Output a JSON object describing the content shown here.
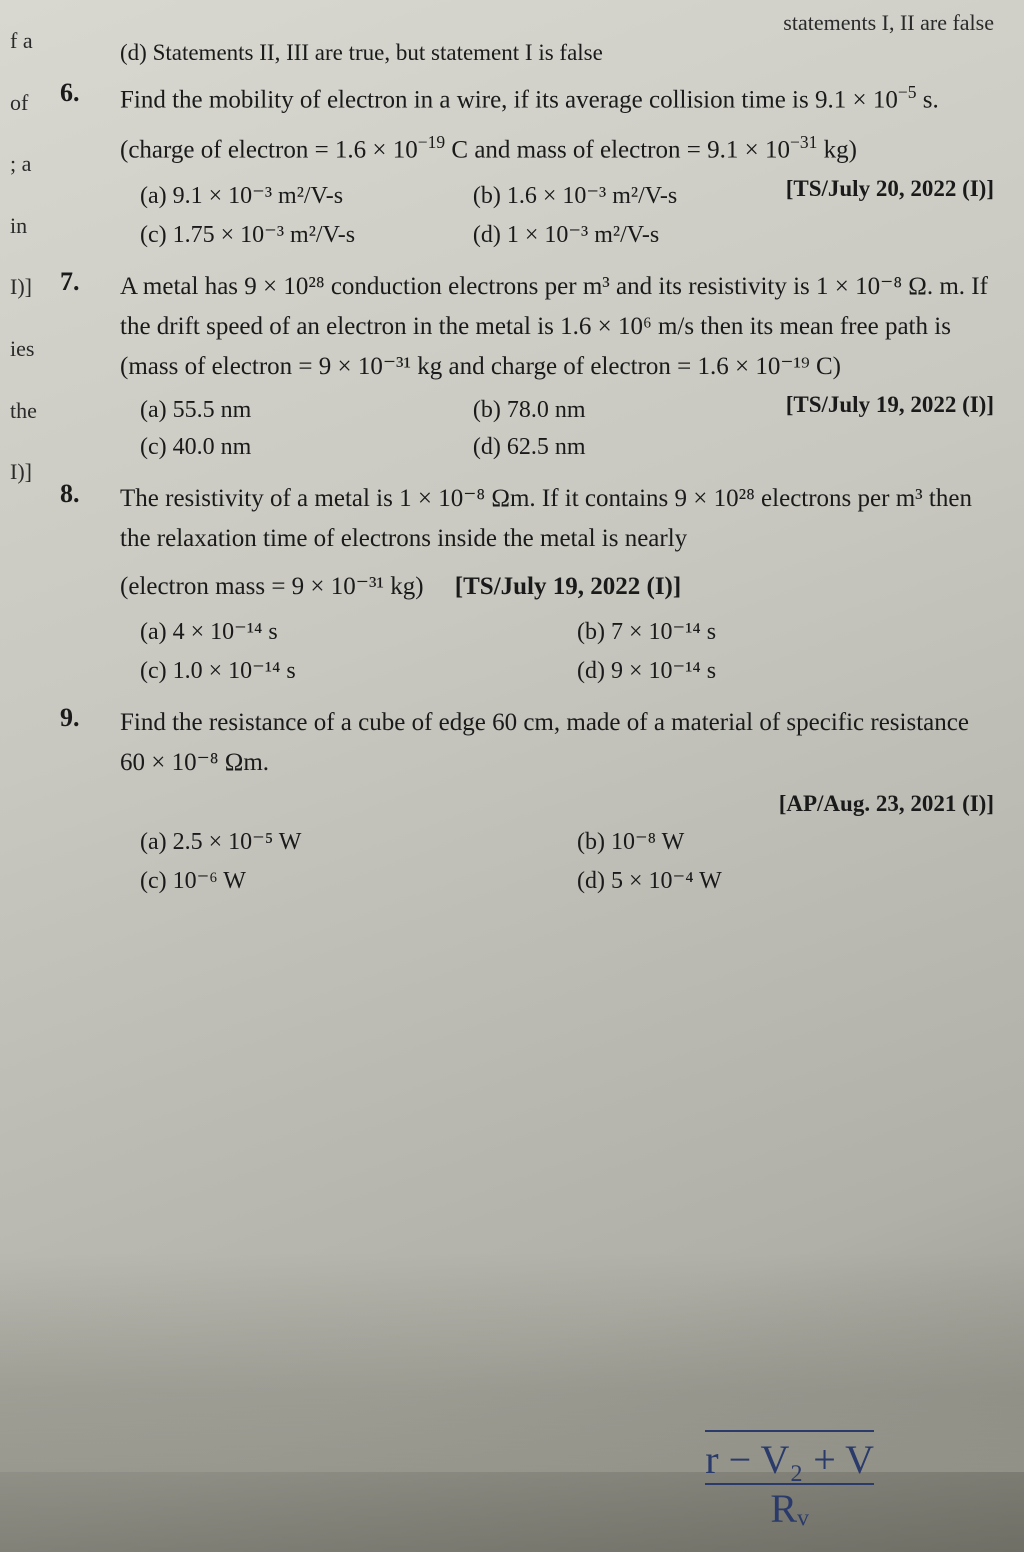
{
  "leftMargin": {
    "lines": [
      "f a",
      "of",
      "; a",
      "in",
      "I)]",
      "",
      "ies",
      "the",
      "",
      "I)]"
    ]
  },
  "topFragment": "statements I, II are false",
  "optionD": "(d) Statements II, III are true, but statement I is false",
  "q6": {
    "number": "6.",
    "text1": "Find the mobility of electron in a wire, if its average collision time is 9.1 × 10",
    "exp1": "−5",
    "text1b": " s.",
    "text2a": "(charge of electron = 1.6 × 10",
    "exp2": "−19",
    "text2b": " C and mass of electron = 9.1 × 10",
    "exp3": "−31",
    "text2c": " kg)",
    "source": "[TS/July 20, 2022 (I)]",
    "optA": "(a) 9.1 × 10⁻³ m²/V-s",
    "optB": "(b) 1.6 × 10⁻³ m²/V-s",
    "optC": "(c) 1.75 × 10⁻³ m²/V-s",
    "optD": "(d) 1 × 10⁻³ m²/V-s"
  },
  "q7": {
    "number": "7.",
    "text1": "A metal has 9 × 10²⁸ conduction electrons per m³ and its resistivity is 1 × 10⁻⁸ Ω. m. If the drift speed of an electron in the metal is 1.6 × 10⁶ m/s then its mean free path is (mass of electron = 9 × 10⁻³¹ kg and charge of electron = 1.6 × 10⁻¹⁹ C)",
    "source": "[TS/July 19, 2022 (I)]",
    "optA": "(a) 55.5 nm",
    "optB": "(b) 78.0 nm",
    "optC": "(c) 40.0 nm",
    "optD": "(d) 62.5 nm"
  },
  "q8": {
    "number": "8.",
    "text1": "The resistivity of a metal is 1 × 10⁻⁸ Ωm. If it contains 9 × 10²⁸ electrons per m³ then the relaxation time of electrons inside the metal is nearly",
    "text2": "(electron mass = 9 × 10⁻³¹ kg)",
    "source": "[TS/July 19, 2022 (I)]",
    "optA": "(a) 4 × 10⁻¹⁴ s",
    "optB": "(b) 7 × 10⁻¹⁴ s",
    "optC": "(c) 1.0 × 10⁻¹⁴ s",
    "optD": "(d) 9 × 10⁻¹⁴ s"
  },
  "q9": {
    "number": "9.",
    "text1": "Find the resistance of a cube of edge 60 cm, made of a material of specific resistance 60 × 10⁻⁸ Ωm.",
    "source": "[AP/Aug. 23, 2021 (I)]",
    "optA": "(a) 2.5 × 10⁻⁵ W",
    "optB": "(b) 10⁻⁸ W",
    "optC": "(c) 10⁻⁶ W",
    "optD": "(d) 5 × 10⁻⁴ W"
  },
  "handwriting": {
    "top": "r − V₂ + V",
    "bottom": "Rᵥ"
  }
}
